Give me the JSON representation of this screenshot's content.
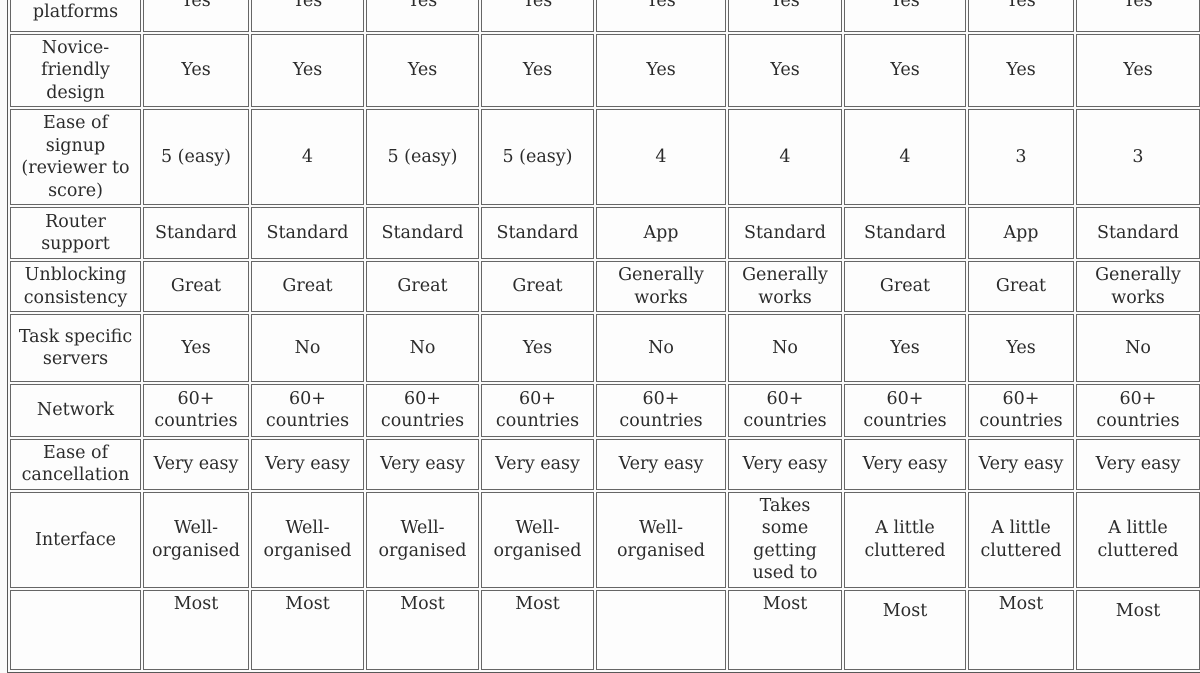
{
  "colors": {
    "page_background": "#fbfbfb",
    "cell_background": "#fdfdfd",
    "border": "#666666",
    "text": "#2b2b2b"
  },
  "table": {
    "rows": [
      {
        "label": "major platforms",
        "values": [
          "Yes",
          "Yes",
          "Yes",
          "Yes",
          "Yes",
          "Yes",
          "Yes",
          "Yes",
          "Yes"
        ]
      },
      {
        "label": "Novice-friendly design",
        "values": [
          "Yes",
          "Yes",
          "Yes",
          "Yes",
          "Yes",
          "Yes",
          "Yes",
          "Yes",
          "Yes"
        ]
      },
      {
        "label": "Ease of signup (reviewer to score)",
        "values": [
          "5 (easy)",
          "4",
          "5 (easy)",
          "5 (easy)",
          "4",
          "4",
          "4",
          "3",
          "3"
        ]
      },
      {
        "label": "Router support",
        "values": [
          "Standard",
          "Standard",
          "Standard",
          "Standard",
          "App",
          "Standard",
          "Standard",
          "App",
          "Standard"
        ]
      },
      {
        "label": "Unblocking consistency",
        "values": [
          "Great",
          "Great",
          "Great",
          "Great",
          "Generally works",
          "Generally works",
          "Great",
          "Great",
          "Generally works"
        ]
      },
      {
        "label": "Task specific servers",
        "values": [
          "Yes",
          "No",
          "No",
          "Yes",
          "No",
          "No",
          "Yes",
          "Yes",
          "No"
        ]
      },
      {
        "label": "Network",
        "values": [
          "60+ countries",
          "60+ countries",
          "60+ countries",
          "60+ countries",
          "60+ countries",
          "60+ countries",
          "60+ countries",
          "60+ countries",
          "60+ countries"
        ]
      },
      {
        "label": "Ease of cancellation",
        "values": [
          "Very easy",
          "Very easy",
          "Very easy",
          "Very easy",
          "Very easy",
          "Very easy",
          "Very easy",
          "Very easy",
          "Very easy"
        ]
      },
      {
        "label": "Interface",
        "values": [
          "Well-organised",
          "Well-organised",
          "Well-organised",
          "Well-organised",
          "Well-organised",
          "Takes some getting used to",
          "A little cluttered",
          "A little cluttered",
          "A little cluttered"
        ]
      },
      {
        "label": "",
        "values": [
          "Most",
          "Most",
          "Most",
          "Most",
          "",
          "Most",
          "Most",
          "Most",
          "Most"
        ]
      }
    ]
  }
}
